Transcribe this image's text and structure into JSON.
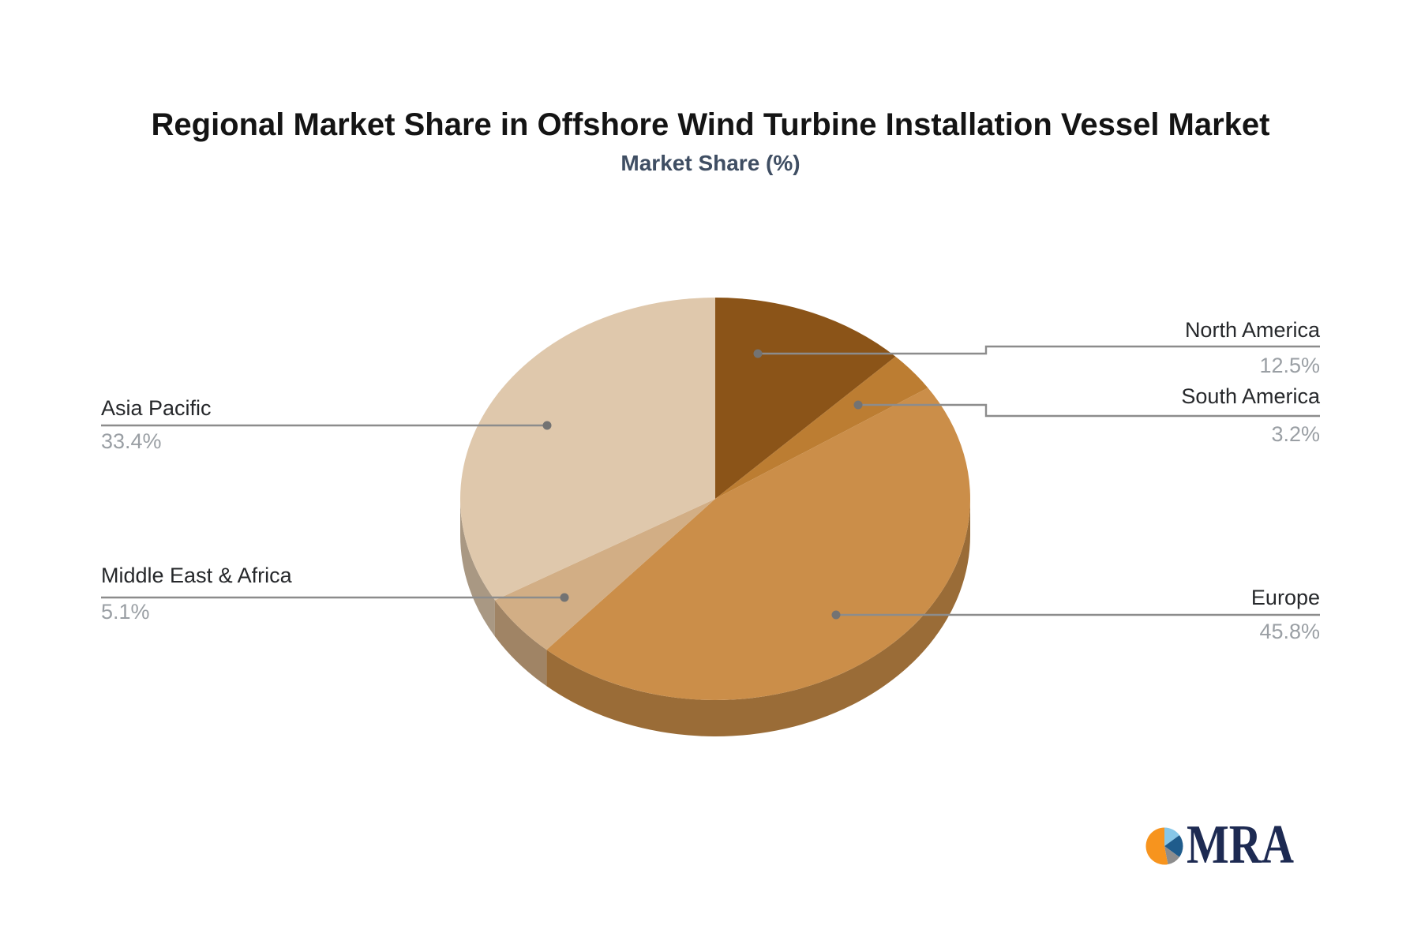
{
  "header": {
    "title": "Regional Market Share in Offshore Wind Turbine Installation Vessel Market",
    "subtitle": "Market Share (%)"
  },
  "chart_data": {
    "type": "pie",
    "title": "Regional Market Share in Offshore Wind Turbine Installation Vessel Market",
    "subtitle": "Market Share (%)",
    "unit": "%",
    "effect_3d": true,
    "start_angle_deg": -90,
    "direction": "clockwise",
    "legend_position": "none",
    "connector_line_color": "#8c8c8c",
    "connector_dot_color": "#737373",
    "slices": [
      {
        "name": "North America",
        "value": 12.5,
        "pct_label": "12.5%",
        "color": "#8b5418"
      },
      {
        "name": "South America",
        "value": 3.2,
        "pct_label": "3.2%",
        "color": "#bc7d32"
      },
      {
        "name": "Europe",
        "value": 45.8,
        "pct_label": "45.8%",
        "color": "#cb8e49"
      },
      {
        "name": "Middle East & Africa",
        "value": 5.1,
        "pct_label": "5.1%",
        "color": "#d2ae85"
      },
      {
        "name": "Asia Pacific",
        "value": 33.4,
        "pct_label": "33.4%",
        "color": "#dfc8ac"
      }
    ]
  },
  "logo": {
    "text": "MRA",
    "text_color": "#1d2a52",
    "icon_slices": [
      {
        "color": "#87c7e8",
        "fraction": 0.15
      },
      {
        "color": "#1f5c8c",
        "fraction": 0.2
      },
      {
        "color": "#8d8d8d",
        "fraction": 0.12
      },
      {
        "color": "#f7941e",
        "fraction": 0.53
      }
    ]
  }
}
